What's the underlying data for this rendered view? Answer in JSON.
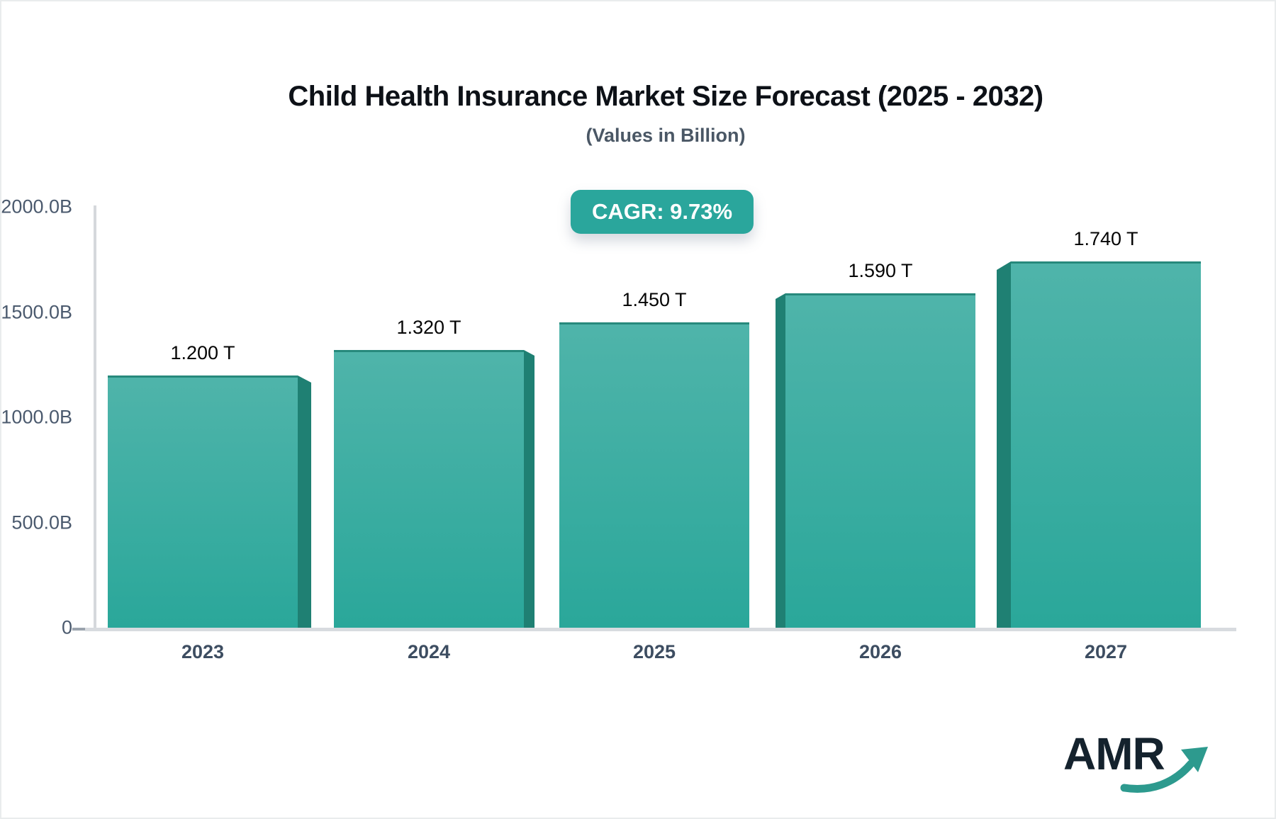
{
  "header": {
    "title": "Child Health Insurance Market Size Forecast (2025 - 2032)",
    "subtitle": "(Values in Billion)",
    "badge_label": "CAGR: 9.73%",
    "badge_color": "#2aa69c"
  },
  "chart_data": {
    "type": "bar",
    "categories": [
      "2023",
      "2024",
      "2025",
      "2026",
      "2027"
    ],
    "values": [
      1200,
      1320,
      1450,
      1590,
      1740
    ],
    "value_labels": [
      "1.200 T",
      "1.320 T",
      "1.450 T",
      "1.590 T",
      "1.740 T"
    ],
    "unit": "Billion",
    "title": "Child Health Insurance Market Size Forecast (2025 - 2032)",
    "subtitle": "(Values in Billion)",
    "annotation": "CAGR: 9.73%",
    "xlabel": "",
    "ylabel": "",
    "ylim": [
      0,
      2000
    ],
    "yticks": [
      {
        "label": "2000.0B",
        "value": 2000
      },
      {
        "label": "1500.0B",
        "value": 1500
      },
      {
        "label": "1000.0B",
        "value": 1000
      },
      {
        "label": "500.0B",
        "value": 500
      },
      {
        "label": "0",
        "value": 0
      }
    ],
    "grid": false,
    "legend": false,
    "style": "3d-perspective-bars",
    "colors": {
      "bar_gradient_top": "#4fb4aa",
      "bar_gradient_bottom": "#2aa79a",
      "bar_top_edge": "#27897c",
      "bar_side_face": "#1f8073",
      "axis_line": "#d6d9dd",
      "tick_label": "#4b5a6e",
      "category_label": "#3d4d61",
      "value_label": "#050505"
    }
  },
  "logo": {
    "text": "AMR",
    "arrow_color": "#2d9a8e"
  }
}
